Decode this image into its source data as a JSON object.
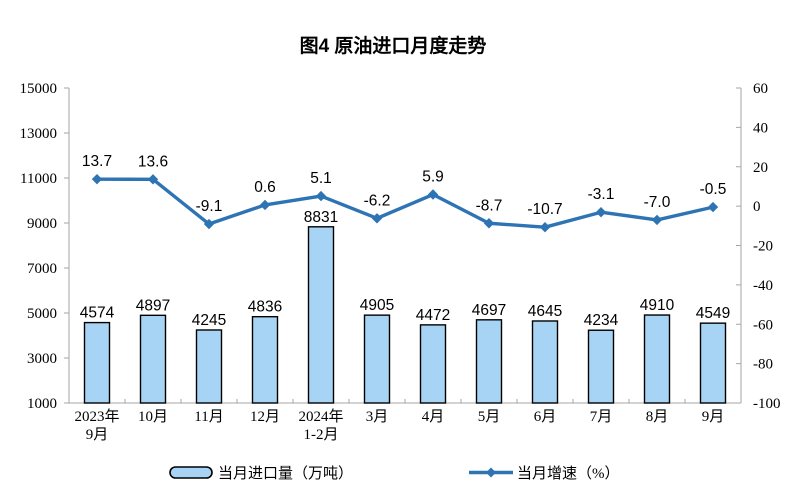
{
  "title": "图4 原油进口月度走势",
  "colors": {
    "bar_fill": "#A7D4F5",
    "bar_stroke": "#000000",
    "line": "#2E74B5",
    "axis_line": "#A6A6A6",
    "text": "#000000",
    "background": "#FFFFFF"
  },
  "legend": [
    {
      "label": "当月进口量（万吨）",
      "swatch": "bar"
    },
    {
      "label": "当月增速（%）",
      "swatch": "line"
    }
  ],
  "chart_data": {
    "type": "bar+line combo",
    "title": "图4 原油进口月度走势",
    "categories": [
      [
        "2023年",
        "9月"
      ],
      [
        "10月"
      ],
      [
        "11月"
      ],
      [
        "12月"
      ],
      [
        "2024年",
        "1-2月"
      ],
      [
        "3月"
      ],
      [
        "4月"
      ],
      [
        "5月"
      ],
      [
        "6月"
      ],
      [
        "7月"
      ],
      [
        "8月"
      ],
      [
        "9月"
      ]
    ],
    "series": [
      {
        "name": "当月进口量（万吨）",
        "type": "bar",
        "axis": "left",
        "values": [
          4574,
          4897,
          4245,
          4836,
          8831,
          4905,
          4472,
          4697,
          4645,
          4234,
          4910,
          4549
        ]
      },
      {
        "name": "当月增速（%）",
        "type": "line",
        "axis": "right",
        "values": [
          13.7,
          13.6,
          -9.1,
          0.6,
          5.1,
          -6.2,
          5.9,
          -8.7,
          -10.7,
          -3.1,
          -7.0,
          -0.5
        ],
        "label_decimals": 1
      }
    ],
    "left_axis": {
      "min": 1000,
      "max": 15000,
      "step": 2000
    },
    "right_axis": {
      "min": -100,
      "max": 60,
      "step": 20
    },
    "grid": false,
    "legend_position": "bottom"
  }
}
